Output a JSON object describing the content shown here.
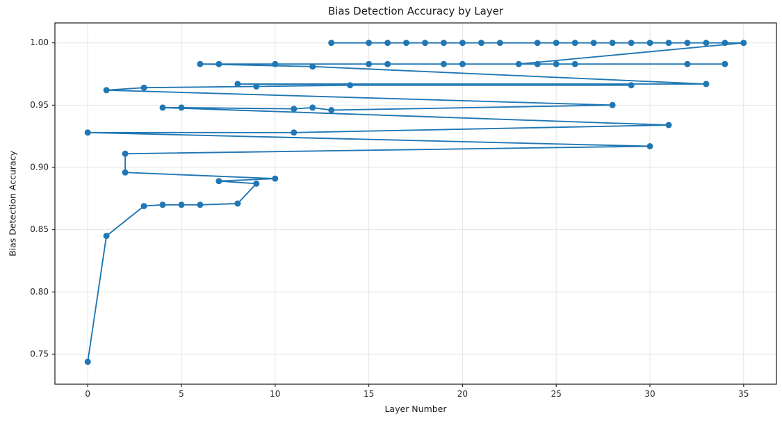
{
  "chart_data": {
    "type": "line",
    "title": "Bias Detection Accuracy by Layer",
    "xlabel": "Layer Number",
    "ylabel": "Bias Detection Accuracy",
    "xlim": [
      -1.75,
      36.75
    ],
    "ylim": [
      0.726,
      1.016
    ],
    "x_ticks": [
      0,
      5,
      10,
      15,
      20,
      25,
      30,
      35
    ],
    "x_tick_labels": [
      "0",
      "5",
      "10",
      "15",
      "20",
      "25",
      "30",
      "35"
    ],
    "y_ticks": [
      0.75,
      0.8,
      0.85,
      0.9,
      0.95,
      1.0
    ],
    "y_tick_labels": [
      "0.75",
      "0.80",
      "0.85",
      "0.90",
      "0.95",
      "1.00"
    ],
    "grid": true,
    "legend": "none",
    "line_color": "#2077b4",
    "grid_color": "#e4e4e4",
    "spine_color": "#2b2b2b",
    "marker": "o",
    "marker_radius": 4.5,
    "line_width": 1.9,
    "points_draw_order": [
      [
        0,
        0.744
      ],
      [
        1,
        0.845
      ],
      [
        3,
        0.869
      ],
      [
        4,
        0.87
      ],
      [
        5,
        0.87
      ],
      [
        6,
        0.87
      ],
      [
        8,
        0.871
      ],
      [
        9,
        0.887
      ],
      [
        7,
        0.889
      ],
      [
        10,
        0.891
      ],
      [
        2,
        0.896
      ],
      [
        2,
        0.911
      ],
      [
        30,
        0.917
      ],
      [
        0,
        0.928
      ],
      [
        11,
        0.928
      ],
      [
        31,
        0.934
      ],
      [
        4,
        0.948
      ],
      [
        5,
        0.948
      ],
      [
        11,
        0.947
      ],
      [
        12,
        0.948
      ],
      [
        13,
        0.946
      ],
      [
        28,
        0.95
      ],
      [
        1,
        0.962
      ],
      [
        3,
        0.964
      ],
      [
        9,
        0.965
      ],
      [
        14,
        0.966
      ],
      [
        29,
        0.966
      ],
      [
        8,
        0.967
      ],
      [
        33,
        0.967
      ],
      [
        12,
        0.981
      ],
      [
        6,
        0.983
      ],
      [
        7,
        0.983
      ],
      [
        10,
        0.983
      ],
      [
        15,
        0.983
      ],
      [
        16,
        0.983
      ],
      [
        19,
        0.983
      ],
      [
        20,
        0.983
      ],
      [
        24,
        0.983
      ],
      [
        25,
        0.983
      ],
      [
        26,
        0.983
      ],
      [
        32,
        0.983
      ],
      [
        34,
        0.983
      ],
      [
        23,
        0.983
      ],
      [
        35,
        1.0
      ],
      [
        34,
        1.0
      ],
      [
        33,
        1.0
      ],
      [
        32,
        1.0
      ],
      [
        31,
        1.0
      ],
      [
        30,
        1.0
      ],
      [
        29,
        1.0
      ],
      [
        28,
        1.0
      ],
      [
        27,
        1.0
      ],
      [
        26,
        1.0
      ],
      [
        25,
        1.0
      ],
      [
        24,
        1.0
      ],
      [
        22,
        1.0
      ],
      [
        21,
        1.0
      ],
      [
        20,
        1.0
      ],
      [
        19,
        1.0
      ],
      [
        18,
        1.0
      ],
      [
        17,
        1.0
      ],
      [
        16,
        1.0
      ],
      [
        15,
        1.0
      ],
      [
        13,
        1.0
      ]
    ]
  }
}
